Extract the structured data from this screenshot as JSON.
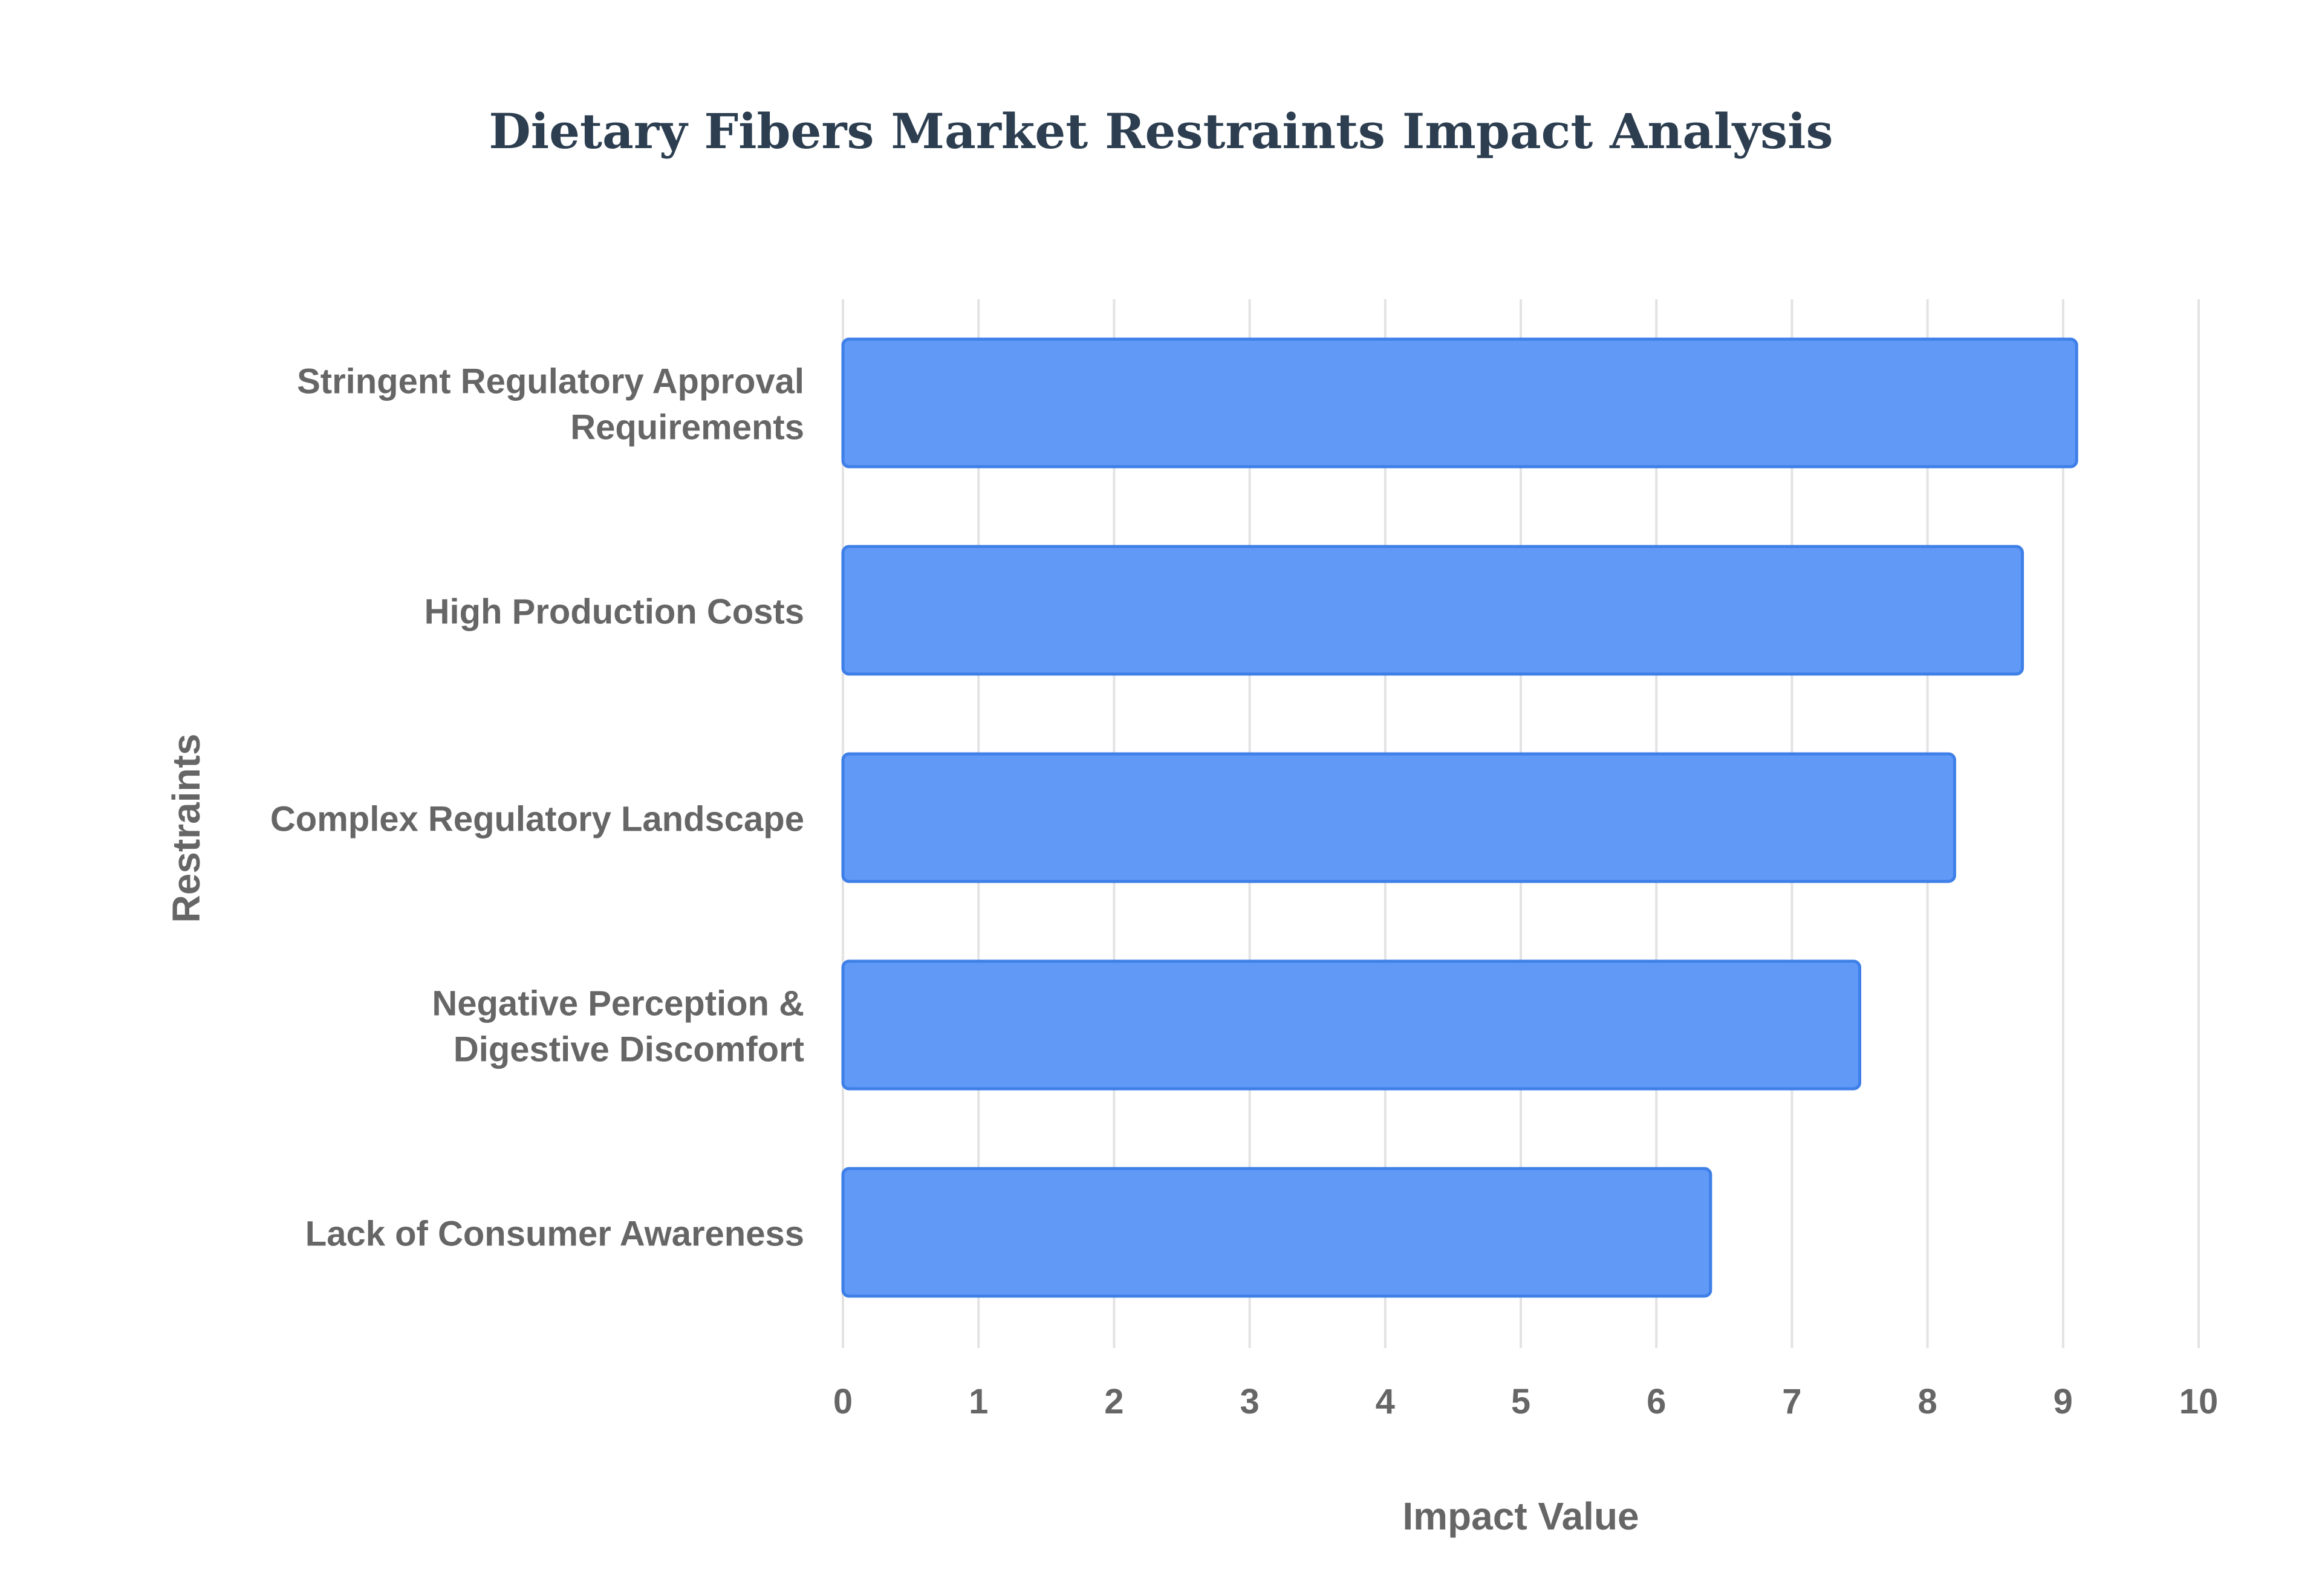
{
  "chart_data": {
    "type": "bar",
    "orientation": "horizontal",
    "title": "Dietary Fibers Market Restraints Impact Analysis",
    "xlabel": "Impact Value",
    "ylabel": "Restraints",
    "categories": [
      [
        "Stringent Regulatory Approval",
        "Requirements"
      ],
      [
        "High Production Costs"
      ],
      [
        "Complex Regulatory Landscape"
      ],
      [
        "Negative Perception &",
        "Digestive Discomfort"
      ],
      [
        "Lack of Consumer Awareness"
      ]
    ],
    "values": [
      9.1,
      8.7,
      8.2,
      7.5,
      6.4
    ],
    "xlim": [
      0,
      10
    ],
    "xticks": [
      "0",
      "1",
      "2",
      "3",
      "4",
      "5",
      "6",
      "7",
      "8",
      "9",
      "10"
    ],
    "grid": true,
    "colors": {
      "bar_fill": "#6199f7",
      "bar_stroke": "#3e7fe8",
      "grid": "#e3e3e3",
      "axis_text": "#666666",
      "title": "#2c3e50"
    }
  }
}
